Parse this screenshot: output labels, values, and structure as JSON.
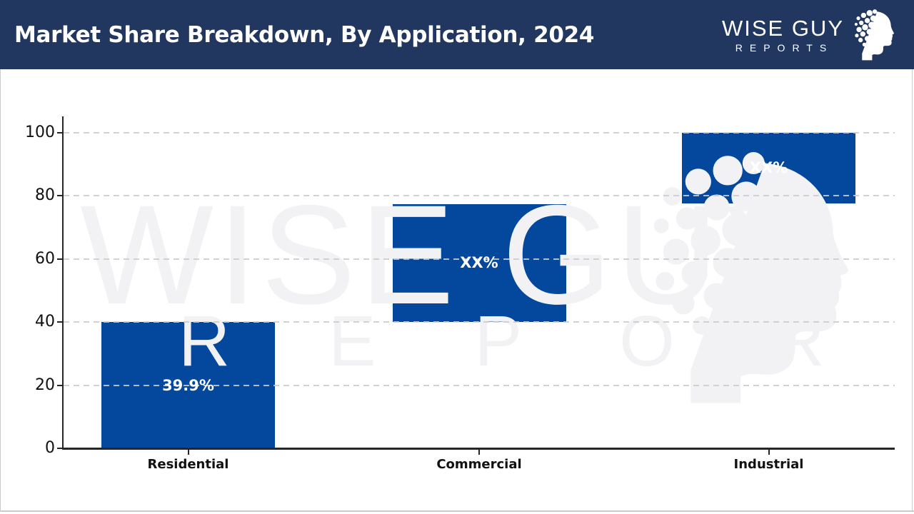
{
  "header": {
    "title": "Market Share Breakdown, By Application, 2024",
    "bg_color": "#21375f",
    "logo": {
      "line1": "WISE GUY",
      "line2": "REPORTS"
    }
  },
  "watermark": {
    "line1": "WISE GUY",
    "line2": "R E P O R T S"
  },
  "chart_data": {
    "type": "bar",
    "subtype": "floating-segment-bars",
    "title": "Market Share Breakdown, By Application, 2024",
    "categories": [
      "Residential",
      "Commercial",
      "Industrial"
    ],
    "bars": [
      {
        "category": "Residential",
        "label": "39.9%",
        "start": 0,
        "end": 39.9
      },
      {
        "category": "Commercial",
        "label": "XX%",
        "start": 40.0,
        "end": 77.4
      },
      {
        "category": "Industrial",
        "label": "XX%",
        "start": 77.5,
        "end": 100.0
      }
    ],
    "y_ticks": [
      0,
      20,
      40,
      60,
      80,
      100
    ],
    "ylim": [
      0,
      105
    ],
    "xlabel": "",
    "ylabel": "",
    "grid": true,
    "legend": false,
    "bar_color": "#04489e",
    "value_label_color": "#ffffff",
    "gridline_color": "#cbcbcb",
    "axis_color": "#262626"
  }
}
